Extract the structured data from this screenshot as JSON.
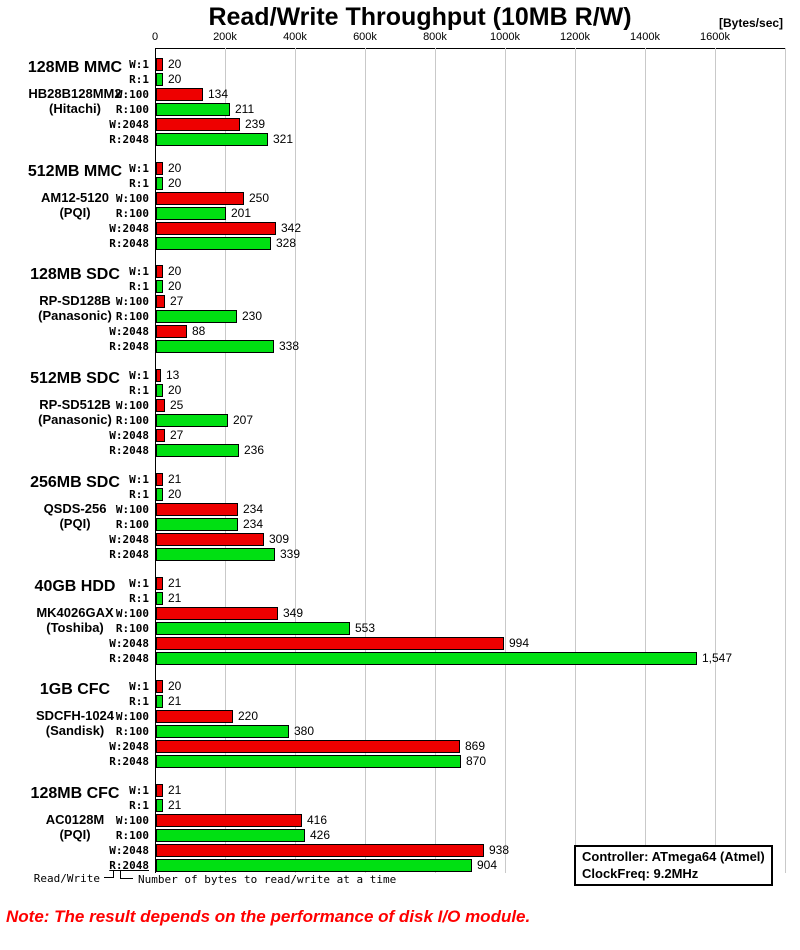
{
  "title": "Read/Write Throughput (10MB R/W)",
  "unit_label": "[Bytes/sec]",
  "annotations": {
    "read_write": "Read/Write",
    "bytes_per_op": "Number of bytes to read/write at a time"
  },
  "info_box": {
    "lines": [
      "Controller: ATmega64 (Atmel)",
      "ClockFreq: 9.2MHz"
    ]
  },
  "note": "Note: The result depends on the performance of disk I/O module.",
  "chart_data": {
    "type": "bar",
    "orientation": "horizontal",
    "title": "Read/Write Throughput (10MB R/W)",
    "x_unit": "Bytes/sec",
    "value_scale_note": "bar values are in kBytes/sec; axis ticks labeled in k",
    "axis": {
      "min": 0,
      "max": 1800,
      "tick_step": 200,
      "tick_labels": [
        "0",
        "200k",
        "400k",
        "600k",
        "800k",
        "1000k",
        "1200k",
        "1400k",
        "1600k"
      ],
      "grid": true
    },
    "bar_labels": [
      "W:1",
      "R:1",
      "W:100",
      "R:100",
      "W:2048",
      "R:2048"
    ],
    "colors": {
      "write": "#ee0000",
      "read": "#00e012"
    },
    "groups": [
      {
        "name": "128MB MMC",
        "model": "HB28B128MM2",
        "maker": "(Hitachi)",
        "values": [
          20,
          20,
          134,
          211,
          239,
          321
        ]
      },
      {
        "name": "512MB MMC",
        "model": "AM12-5120",
        "maker": "(PQI)",
        "values": [
          20,
          20,
          250,
          201,
          342,
          328
        ]
      },
      {
        "name": "128MB SDC",
        "model": "RP-SD128B",
        "maker": "(Panasonic)",
        "values": [
          20,
          20,
          27,
          230,
          88,
          338
        ]
      },
      {
        "name": "512MB SDC",
        "model": "RP-SD512B",
        "maker": "(Panasonic)",
        "values": [
          13,
          20,
          25,
          207,
          27,
          236
        ]
      },
      {
        "name": "256MB SDC",
        "model": "QSDS-256",
        "maker": "(PQI)",
        "values": [
          21,
          20,
          234,
          234,
          309,
          339
        ]
      },
      {
        "name": "40GB HDD",
        "model": "MK4026GAX",
        "maker": "(Toshiba)",
        "values": [
          21,
          21,
          349,
          553,
          994,
          1547
        ]
      },
      {
        "name": "1GB CFC",
        "model": "SDCFH-1024",
        "maker": "(Sandisk)",
        "values": [
          20,
          21,
          220,
          380,
          869,
          870
        ]
      },
      {
        "name": "128MB CFC",
        "model": "AC0128M",
        "maker": "(PQI)",
        "values": [
          21,
          21,
          416,
          426,
          938,
          904
        ]
      }
    ]
  }
}
